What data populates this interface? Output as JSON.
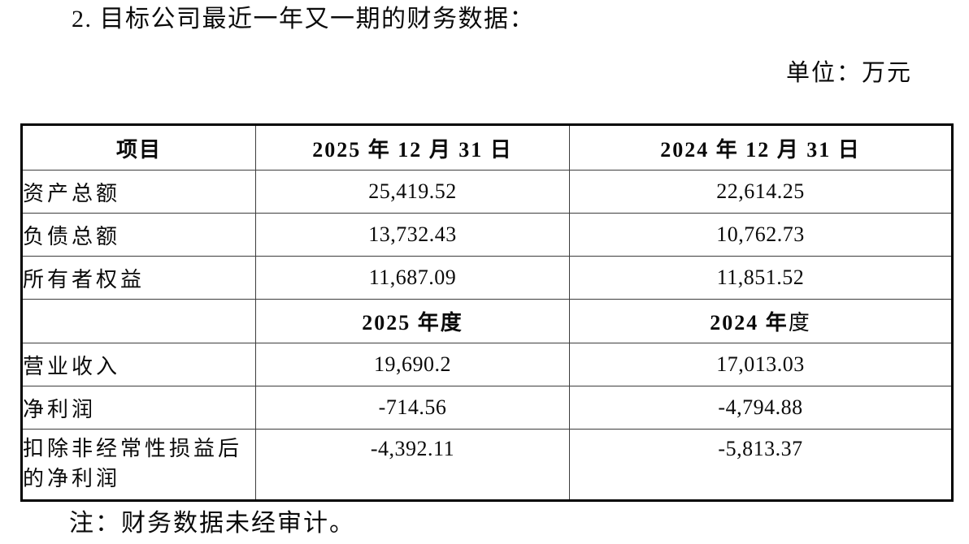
{
  "page": {
    "title": "2. 目标公司最近一年又一期的财务数据：",
    "unit_label": "单位：万元",
    "note": "注：财务数据未经审计。"
  },
  "table": {
    "header": {
      "item_col": "项目",
      "col_2025": "2025 年 12 月 31 日",
      "col_2024": "2024 年 12 月 31 日"
    },
    "balance_rows": [
      {
        "label": "资产总额",
        "v2025": "25,419.52",
        "v2024": "22,614.25"
      },
      {
        "label": "负债总额",
        "v2025": "13,732.43",
        "v2024": "10,762.73"
      },
      {
        "label": "所有者权益",
        "v2025": "11,687.09",
        "v2024": "11,851.52"
      }
    ],
    "period_header": {
      "col_2025": "2025 年度",
      "col_2024_bold": "2024 年",
      "col_2024_regular": "度"
    },
    "income_rows": [
      {
        "label": "营业收入",
        "v2025": "19,690.2",
        "v2024": "17,013.03"
      },
      {
        "label": "净利润",
        "v2025": "-714.56",
        "v2024": "-4,794.88"
      },
      {
        "label": "扣除非经常性损益后的净利润",
        "v2025": "-4,392.11",
        "v2024": "-5,813.37"
      }
    ]
  }
}
